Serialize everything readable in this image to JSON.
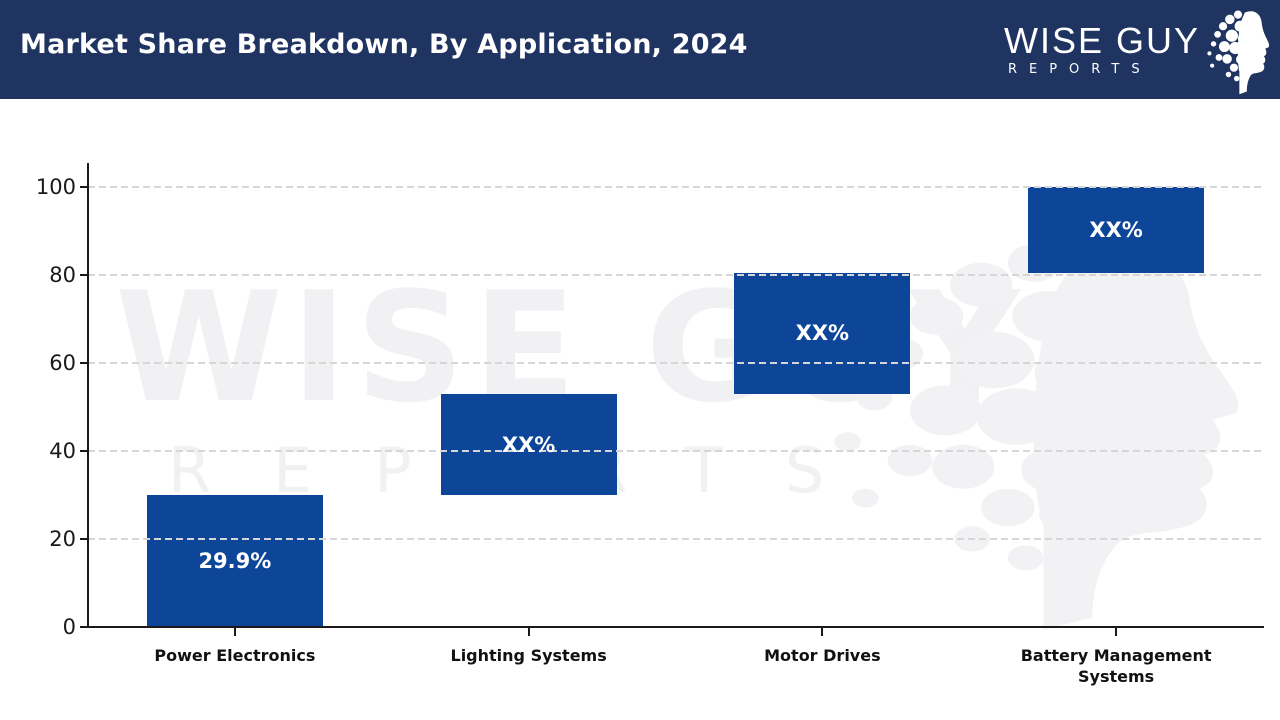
{
  "header": {
    "title": "Market Share Breakdown, By Application, 2024",
    "logo": {
      "line1": "WISE GUY",
      "line2": "REPORTS"
    }
  },
  "watermark": {
    "line1": "WISE GUY",
    "line2": "REPORTS"
  },
  "colors": {
    "header_bg": "#203462",
    "bar": "#0d4599",
    "grid": "#d6d6d6",
    "axis": "#1a1a1a",
    "bar_label_text": "#ffffff",
    "title_text": "#ffffff",
    "watermark": "#f1f1f4"
  },
  "chart_data": {
    "type": "bar",
    "subtype": "waterfall",
    "title": "Market Share Breakdown, By Application, 2024",
    "categories": [
      "Power Electronics",
      "Lighting Systems",
      "Motor Drives",
      "Battery Management Systems"
    ],
    "segments": [
      {
        "category": "Power Electronics",
        "start": 0,
        "end": 29.9,
        "label": "29.9%"
      },
      {
        "category": "Lighting Systems",
        "start": 29.9,
        "end": 53,
        "label": "XX%"
      },
      {
        "category": "Motor Drives",
        "start": 53,
        "end": 80.5,
        "label": "XX%"
      },
      {
        "category": "Battery Management Systems",
        "start": 80.5,
        "end": 100,
        "label": "XX%"
      }
    ],
    "ylim": [
      0,
      100
    ],
    "yticks": [
      0,
      20,
      40,
      60,
      80,
      100
    ],
    "xlabel": "",
    "ylabel": "",
    "grid": "horizontal-dashed",
    "legend_position": "none",
    "bar_value_labels_inside": true
  }
}
